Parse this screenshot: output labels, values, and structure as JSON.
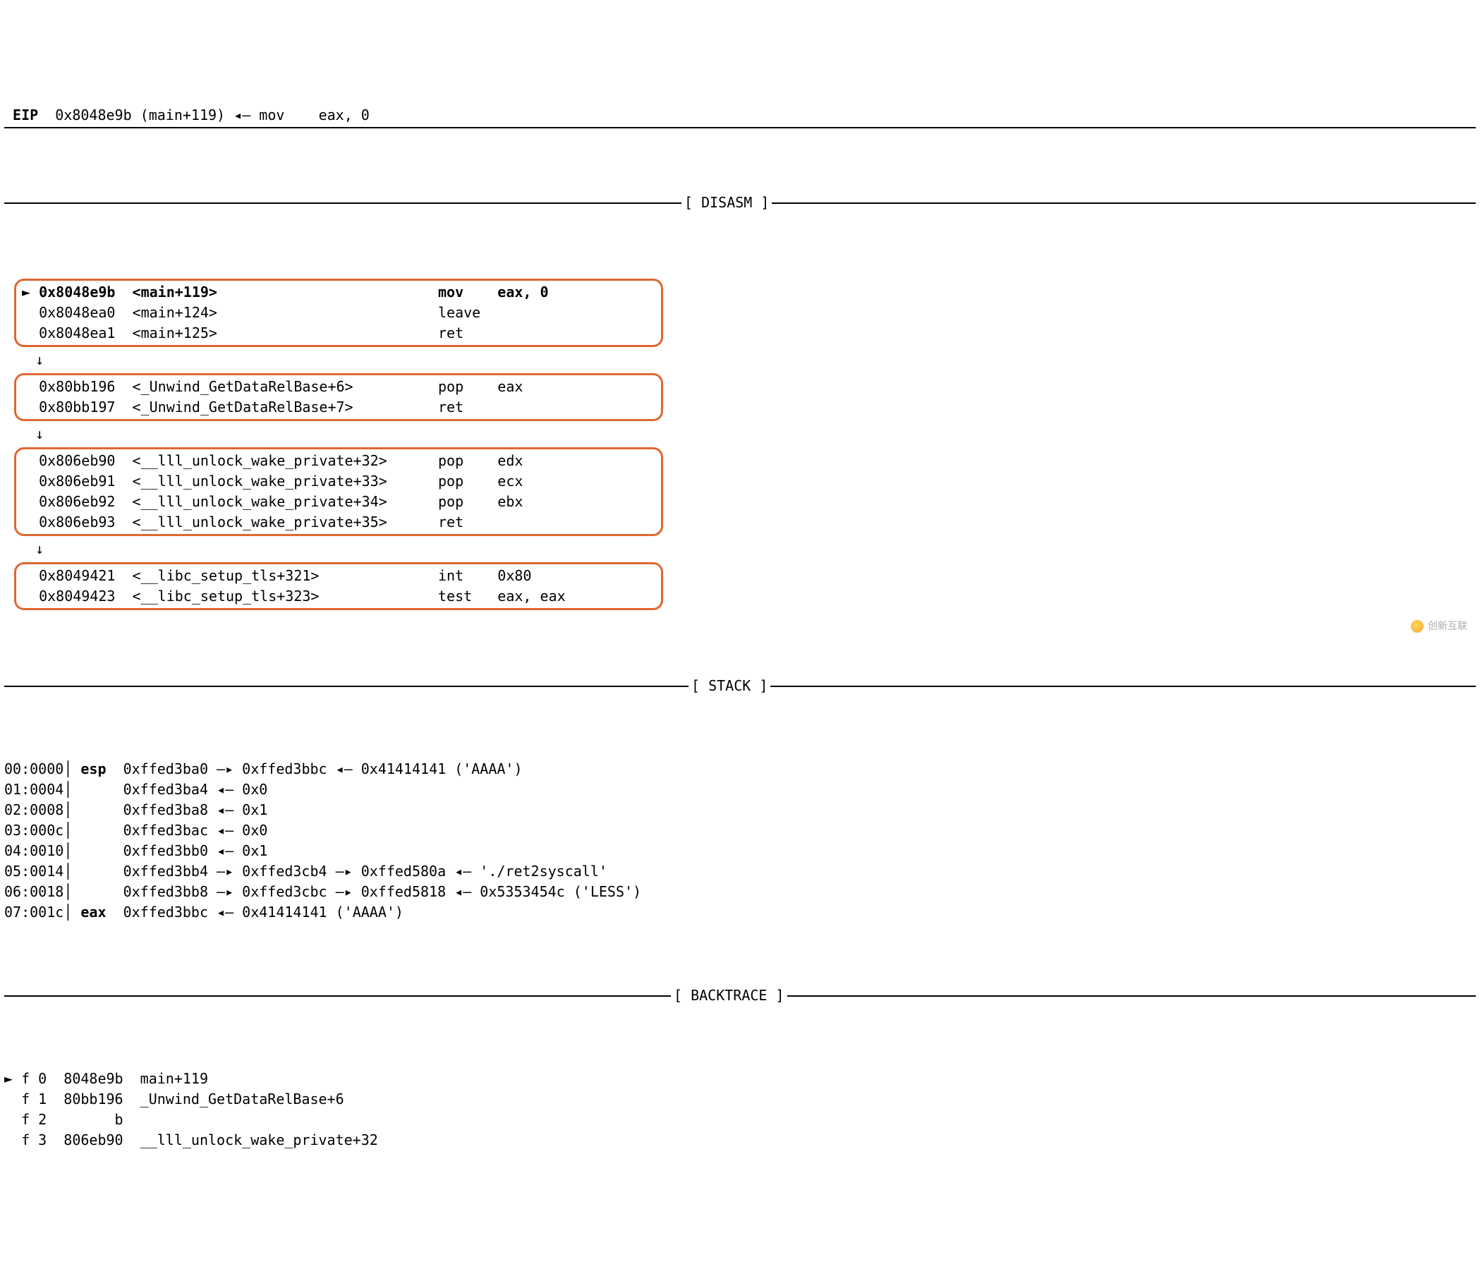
{
  "box_border_color": "#e06633",
  "eip_line": {
    "label": "EIP",
    "addr": "0x8048e9b",
    "loc": "(main+119)",
    "arrow": "◂—",
    "instr": "mov",
    "args": "eax, 0"
  },
  "sections": {
    "disasm": "[ DISASM ]",
    "stack": "[ STACK ]",
    "backtrace": "[ BACKTRACE ]"
  },
  "disasm_boxes": [
    {
      "rows": [
        {
          "prefix": "►",
          "addr": "0x8048e9b",
          "loc": "<main+119>",
          "instr": "mov",
          "args": "eax, 0",
          "bold": true
        },
        {
          "prefix": " ",
          "addr": "0x8048ea0",
          "loc": "<main+124>",
          "instr": "leave",
          "args": ""
        },
        {
          "prefix": " ",
          "addr": "0x8048ea1",
          "loc": "<main+125>",
          "instr": "ret",
          "args": ""
        }
      ]
    },
    {
      "rows": [
        {
          "prefix": " ",
          "addr": "0x80bb196",
          "loc": "<_Unwind_GetDataRelBase+6>",
          "instr": "pop",
          "args": "eax"
        },
        {
          "prefix": " ",
          "addr": "0x80bb197",
          "loc": "<_Unwind_GetDataRelBase+7>",
          "instr": "ret",
          "args": ""
        }
      ]
    },
    {
      "rows": [
        {
          "prefix": " ",
          "addr": "0x806eb90",
          "loc": "<__lll_unlock_wake_private+32>",
          "instr": "pop",
          "args": "edx"
        },
        {
          "prefix": " ",
          "addr": "0x806eb91",
          "loc": "<__lll_unlock_wake_private+33>",
          "instr": "pop",
          "args": "ecx"
        },
        {
          "prefix": " ",
          "addr": "0x806eb92",
          "loc": "<__lll_unlock_wake_private+34>",
          "instr": "pop",
          "args": "ebx"
        },
        {
          "prefix": " ",
          "addr": "0x806eb93",
          "loc": "<__lll_unlock_wake_private+35>",
          "instr": "ret",
          "args": ""
        }
      ]
    },
    {
      "rows": [
        {
          "prefix": " ",
          "addr": "0x8049421",
          "loc": "<__libc_setup_tls+321>",
          "instr": "int",
          "args": "0x80"
        },
        {
          "prefix": " ",
          "addr": "0x8049423",
          "loc": "<__libc_setup_tls+323>",
          "instr": "test",
          "args": "eax, eax"
        }
      ]
    }
  ],
  "arrow_between_boxes": "↓",
  "stack_rows": [
    {
      "idx": "00:0000│",
      "reg": "esp",
      "chain": "0xffed3ba0 —▸ 0xffed3bbc ◂— 0x41414141 ('AAAA')"
    },
    {
      "idx": "01:0004│",
      "reg": "",
      "chain": "0xffed3ba4 ◂— 0x0"
    },
    {
      "idx": "02:0008│",
      "reg": "",
      "chain": "0xffed3ba8 ◂— 0x1"
    },
    {
      "idx": "03:000c│",
      "reg": "",
      "chain": "0xffed3bac ◂— 0x0"
    },
    {
      "idx": "04:0010│",
      "reg": "",
      "chain": "0xffed3bb0 ◂— 0x1"
    },
    {
      "idx": "05:0014│",
      "reg": "",
      "chain": "0xffed3bb4 —▸ 0xffed3cb4 —▸ 0xffed580a ◂— './ret2syscall'"
    },
    {
      "idx": "06:0018│",
      "reg": "",
      "chain": "0xffed3bb8 —▸ 0xffed3cbc —▸ 0xffed5818 ◂— 0x5353454c ('LESS')"
    },
    {
      "idx": "07:001c│",
      "reg": "eax",
      "chain": "0xffed3bbc ◂— 0x41414141 ('AAAA')"
    }
  ],
  "backtrace_rows": [
    {
      "prefix": "►",
      "frame": "f 0",
      "addr": "8048e9b",
      "sym": "main+119"
    },
    {
      "prefix": " ",
      "frame": "f 1",
      "addr": "80bb196",
      "sym": "_Unwind_GetDataRelBase+6"
    },
    {
      "prefix": " ",
      "frame": "f 2",
      "addr": "      b",
      "sym": ""
    },
    {
      "prefix": " ",
      "frame": "f 3",
      "addr": "806eb90",
      "sym": "__lll_unlock_wake_private+32"
    }
  ],
  "watermark": "创新互联"
}
